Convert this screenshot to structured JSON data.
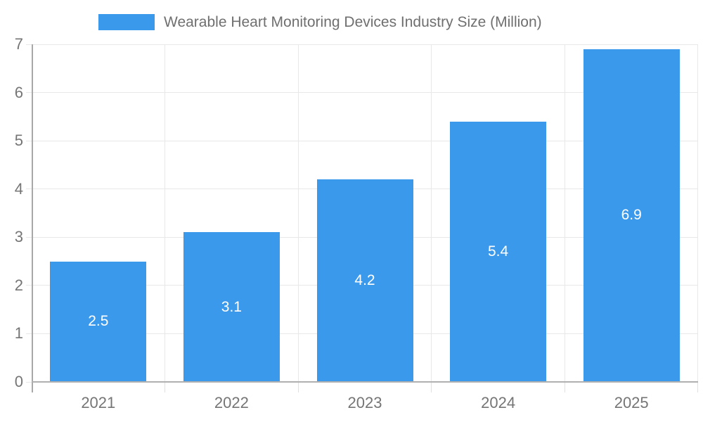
{
  "legend": {
    "title": "Wearable Heart Monitoring Devices Industry Size (Million)"
  },
  "chart_data": {
    "type": "bar",
    "title": "Wearable Heart Monitoring Devices Industry Size (Million)",
    "categories": [
      "2021",
      "2022",
      "2023",
      "2024",
      "2025"
    ],
    "values": [
      2.5,
      3.1,
      4.2,
      5.4,
      6.9
    ],
    "value_labels": [
      "2.5",
      "3.1",
      "4.2",
      "5.4",
      "6.9"
    ],
    "xlabel": "",
    "ylabel": "",
    "ylim": [
      0,
      7
    ],
    "y_ticks": [
      0,
      1,
      2,
      3,
      4,
      5,
      6,
      7
    ],
    "grid": true,
    "legend_position": "top-center",
    "colors": {
      "bar": "#3b99ec",
      "bar_value_label": "#ffffff",
      "axis_text": "#757575",
      "legend_text": "#6f6f6f",
      "gridline": "#e8e8e8",
      "x_tick_line": "#e0e0e0",
      "y_axis_line": "#a8a8a8",
      "x_axis_line": "#b0b0b0",
      "background": "#ffffff"
    }
  }
}
